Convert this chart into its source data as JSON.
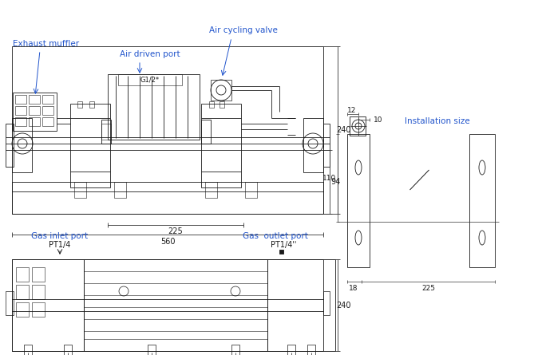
{
  "bg_color": "#ffffff",
  "line_color": "#1a1a1a",
  "blue_color": "#2255cc",
  "annotations": {
    "exhaust_muffler": "Exhaust muffler",
    "air_driven_port": "Air driven port",
    "air_cycling_valve": "Air cycling valve",
    "g12": "G1/2*",
    "gas_inlet_port": "Gas inlet port",
    "gas_outlet_port": "Gas  outlet port",
    "pt14_inlet": "PT1/4",
    "pt14_outlet": "PT1/4''",
    "installation_size": "Installation size",
    "dim_240_top": "240",
    "dim_94": "94",
    "dim_225_top": "225",
    "dim_560": "560",
    "dim_240_bot": "240",
    "dim_12": "12",
    "dim_10": "10",
    "dim_110": "110",
    "dim_18": "18",
    "dim_225_inst": "225"
  },
  "figsize": [
    6.69,
    4.45
  ],
  "dpi": 100
}
